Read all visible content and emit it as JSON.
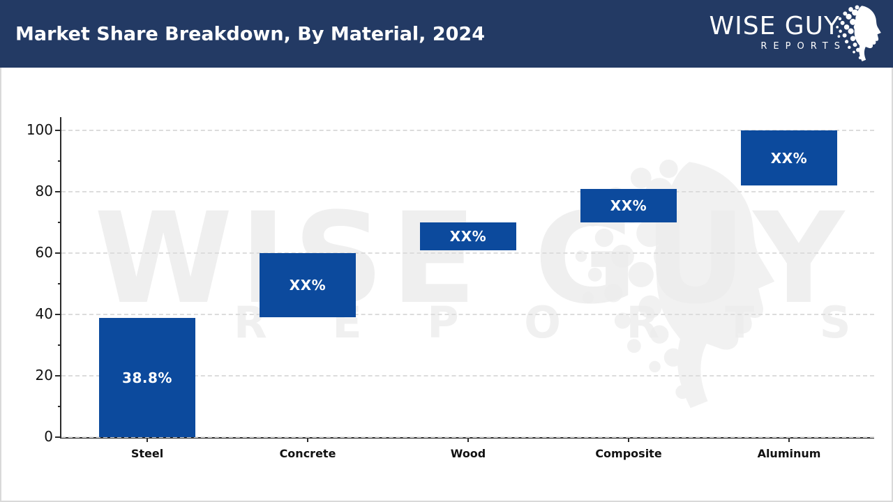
{
  "header": {
    "title": "Market Share Breakdown, By Material, 2024",
    "bg_color": "#233a64",
    "logo": {
      "brand": "WISE GUY",
      "sub": "REPORTS"
    }
  },
  "watermark": {
    "brand": "WISE GUY",
    "sub": "R E P O R T S"
  },
  "chart_data": {
    "type": "bar",
    "subtype": "waterfall",
    "title": "Market Share Breakdown, By Material, 2024",
    "xlabel": "",
    "ylabel": "",
    "categories": [
      "Steel",
      "Concrete",
      "Wood",
      "Composite",
      "Aluminum"
    ],
    "segments": [
      {
        "category": "Steel",
        "start": 0,
        "end": 38.8,
        "label": "38.8%"
      },
      {
        "category": "Concrete",
        "start": 39,
        "end": 60,
        "label": "XX%"
      },
      {
        "category": "Wood",
        "start": 61,
        "end": 70,
        "label": "XX%"
      },
      {
        "category": "Composite",
        "start": 70,
        "end": 81,
        "label": "XX%"
      },
      {
        "category": "Aluminum",
        "start": 82,
        "end": 100,
        "label": "XX%"
      }
    ],
    "yticks": [
      0,
      20,
      40,
      60,
      80,
      100
    ],
    "yticks_minor": [
      10,
      30,
      50,
      70,
      90
    ],
    "ylim": [
      0,
      104
    ],
    "bar_color": "#0c4a9d",
    "grid": "horizontal-dashed",
    "legend": "none",
    "colors": {
      "header_navy": "#233a64",
      "bar_blue": "#0c4a9d",
      "grid_gray": "#dcdcdc",
      "axis_dark": "#2a2a2a",
      "watermark_gray": "#efefef"
    }
  }
}
